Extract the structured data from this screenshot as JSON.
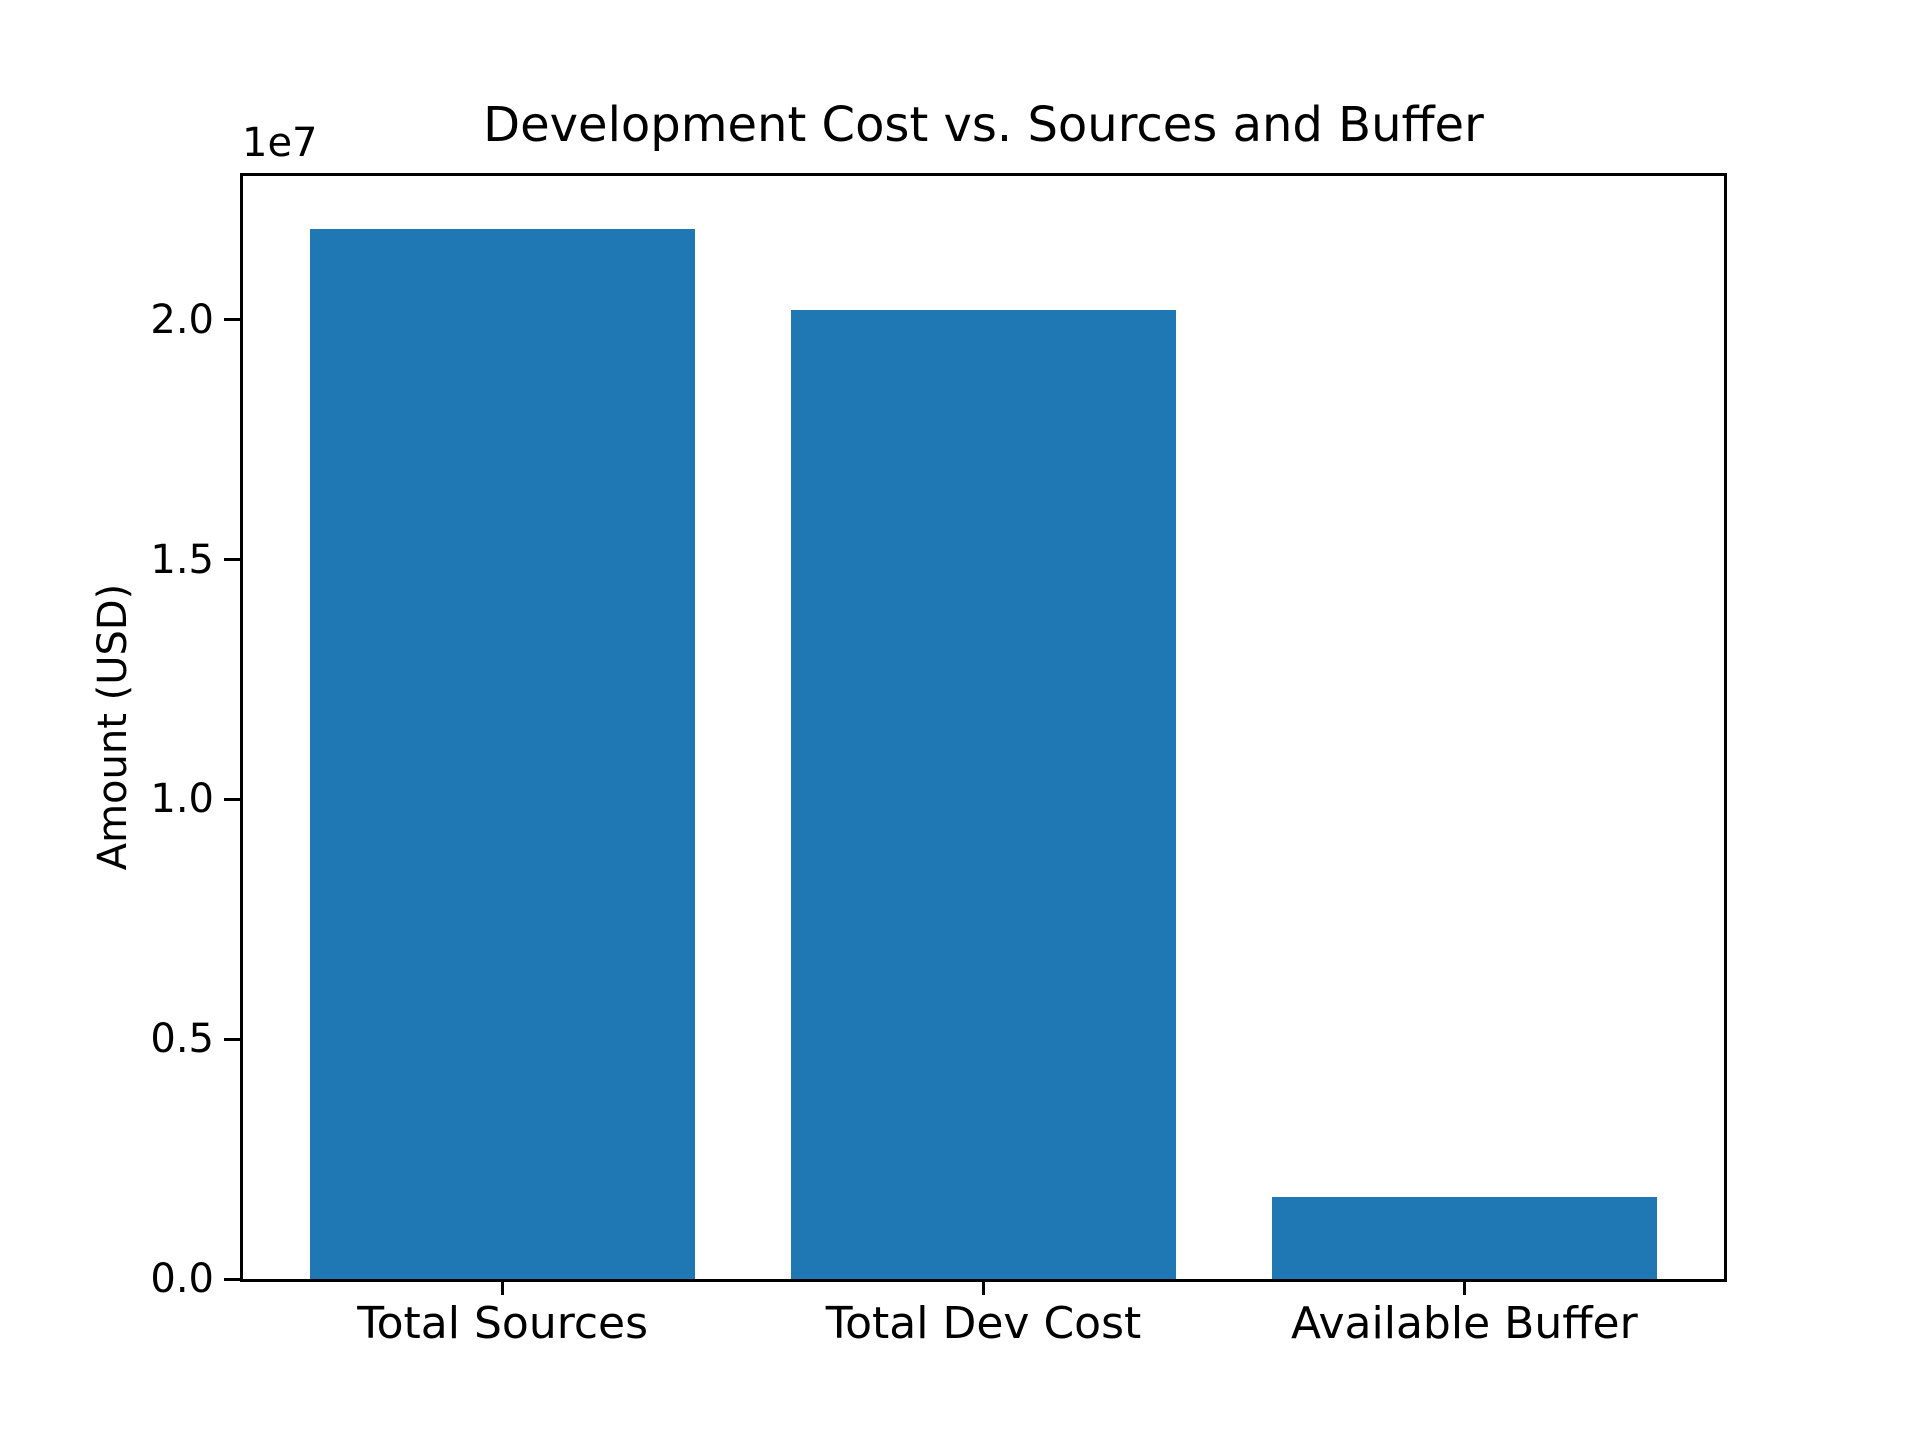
{
  "chart_data": {
    "type": "bar",
    "title": "Development Cost vs. Sources and Buffer",
    "xlabel": "",
    "ylabel": "Amount (USD)",
    "offset_text": "1e7",
    "categories": [
      "Total Sources",
      "Total Dev Cost",
      "Available Buffer"
    ],
    "values": [
      21900000,
      20200000,
      1700000
    ],
    "ylim": [
      0,
      23000000
    ],
    "yticks": [
      0,
      5000000,
      10000000,
      15000000,
      20000000
    ],
    "ytick_labels": [
      "0.0",
      "0.5",
      "1.0",
      "1.5",
      "2.0"
    ],
    "bar_color": "#1f77b4",
    "bar_width_fraction": 0.8,
    "axis_color": "#000000",
    "background_color": "#ffffff",
    "grid": false,
    "legend": null
  }
}
